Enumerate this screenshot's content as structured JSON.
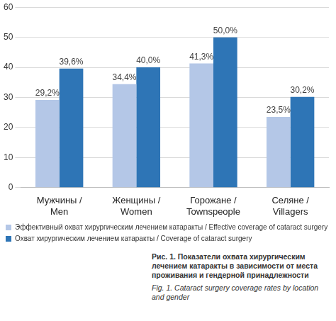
{
  "chart_data": {
    "type": "bar",
    "categories": [
      "Мужчины / Men",
      "Женщины / Women",
      "Горожане / Townspeople",
      "Селяне / Villagers"
    ],
    "series": [
      {
        "name": "Эффективный охват хирургическим лечением катаракты / Effective coverage of cataract surgery",
        "color": "#b4c7e7",
        "values": [
          29.2,
          34.4,
          41.3,
          23.5
        ],
        "value_labels": [
          "29,2%",
          "34,4%",
          "41,3%",
          "23,5%"
        ]
      },
      {
        "name": "Охват хирургическим лечением катаракты / Coverage of cataract surgery",
        "color": "#2e75b6",
        "values": [
          39.6,
          40.0,
          50.0,
          30.2
        ],
        "value_labels": [
          "39,6%",
          "40,0%",
          "50,0%",
          "30,2%"
        ]
      }
    ],
    "ylim": [
      0,
      60
    ],
    "yticks": [
      0,
      10,
      20,
      30,
      40,
      50,
      60
    ],
    "grid": true,
    "legend": "bottom",
    "data_labels": true,
    "caption": [
      "Рис. 1. Показатели охвата хирургическим лечением катаракты в зависимости от места проживания и гендерной принадлежности",
      "Fig. 1. Cataract surgery coverage rates by location and gender"
    ]
  }
}
